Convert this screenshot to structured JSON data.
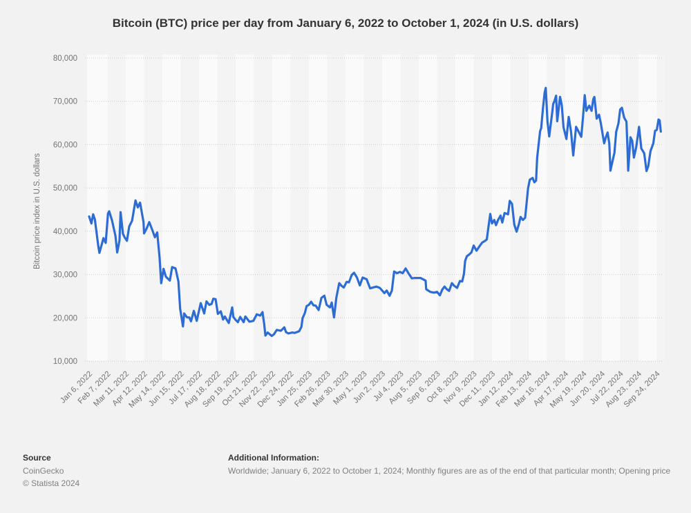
{
  "title": "Bitcoin (BTC) price per day from January 6, 2022 to October 1, 2024 (in U.S. dollars)",
  "colors": {
    "page_bg": "#f2f2f2",
    "band_light": "#fafafa",
    "band_dark": "#f4f4f4",
    "gridline": "#c9c9c9",
    "line": "#2d6cd2",
    "title_text": "#333333",
    "axis_text": "#737373",
    "footer_heading": "#333333",
    "footer_text": "#808080"
  },
  "footer": {
    "source_label": "Source",
    "source_name": "CoinGecko",
    "copyright": "© Statista 2024",
    "additional_info_label": "Additional Information:",
    "additional_info_text": "Worldwide; January 6, 2022 to October 1, 2024; Monthly figures are as of the end of that particular month; Opening price"
  },
  "chart_data": {
    "type": "line",
    "title": "Bitcoin (BTC) price per day from January 6, 2022 to October 1, 2024 (in U.S. dollars)",
    "xlabel": "",
    "ylabel": "Bitcoin price index in U.S. dollars",
    "ylim": [
      10000,
      80000
    ],
    "y_ticks": [
      80000,
      70000,
      60000,
      50000,
      40000,
      30000,
      20000,
      10000
    ],
    "y_tick_labels": [
      "80,000",
      "70,000",
      "60,000",
      "50,000",
      "40,000",
      "30,000",
      "20,000",
      "10,000"
    ],
    "x_tick_labels": [
      "Jan 6, 2022",
      "Feb 7, 2022",
      "Mar 11, 2022",
      "Apr 12, 2022",
      "May 14, 2022",
      "Jun 15, 2022",
      "Jul 17, 2022",
      "Aug 18, 2022",
      "Sep 19, 2022",
      "Oct 21, 2022",
      "Nov 22, 2022",
      "Dec 24, 2022",
      "Jan 25, 2023",
      "Feb 26, 2023",
      "Mar 30, 2023",
      "May 1, 2023",
      "Jun 2, 2023",
      "Jul 4, 2023",
      "Aug 5, 2023",
      "Sep 6, 2023",
      "Oct 8, 2023",
      "Nov 9, 2023",
      "Dec 11, 2023",
      "Jan 12, 2024",
      "Feb 13, 2024",
      "Mar 16, 2024",
      "Apr 17, 2024",
      "May 19, 2024",
      "Jun 20, 2024",
      "Jul 22, 2024",
      "Aug 23, 2024",
      "Sep 24, 2024"
    ],
    "x_tick_interval_days": 32,
    "x_unit": "days since Jan 6, 2022",
    "grid": "horizontal-dotted",
    "legend": "none",
    "series": [
      {
        "name": "Bitcoin opening price (U.S. dollars)",
        "points": [
          [
            0,
            43400
          ],
          [
            4,
            41800
          ],
          [
            7,
            43900
          ],
          [
            10,
            42700
          ],
          [
            16,
            36500
          ],
          [
            18,
            35000
          ],
          [
            25,
            38400
          ],
          [
            29,
            37300
          ],
          [
            33,
            44100
          ],
          [
            35,
            44600
          ],
          [
            40,
            42500
          ],
          [
            46,
            38900
          ],
          [
            49,
            35100
          ],
          [
            53,
            37800
          ],
          [
            55,
            44400
          ],
          [
            59,
            39400
          ],
          [
            62,
            38600
          ],
          [
            66,
            37800
          ],
          [
            70,
            41100
          ],
          [
            75,
            42400
          ],
          [
            81,
            47100
          ],
          [
            85,
            45500
          ],
          [
            89,
            46600
          ],
          [
            95,
            42100
          ],
          [
            96,
            39500
          ],
          [
            100,
            40500
          ],
          [
            105,
            42100
          ],
          [
            110,
            40400
          ],
          [
            115,
            38600
          ],
          [
            119,
            39700
          ],
          [
            123,
            34000
          ],
          [
            126,
            28000
          ],
          [
            130,
            31300
          ],
          [
            134,
            29500
          ],
          [
            141,
            28600
          ],
          [
            145,
            31700
          ],
          [
            151,
            31400
          ],
          [
            156,
            28400
          ],
          [
            159,
            22100
          ],
          [
            164,
            18000
          ],
          [
            166,
            21000
          ],
          [
            171,
            20100
          ],
          [
            175,
            20100
          ],
          [
            178,
            19200
          ],
          [
            183,
            21600
          ],
          [
            188,
            19300
          ],
          [
            195,
            23400
          ],
          [
            201,
            21000
          ],
          [
            205,
            23800
          ],
          [
            210,
            23000
          ],
          [
            214,
            23200
          ],
          [
            217,
            24400
          ],
          [
            221,
            24300
          ],
          [
            225,
            20900
          ],
          [
            230,
            21500
          ],
          [
            234,
            19600
          ],
          [
            237,
            20300
          ],
          [
            244,
            18800
          ],
          [
            250,
            22400
          ],
          [
            252,
            20200
          ],
          [
            256,
            19500
          ],
          [
            260,
            19000
          ],
          [
            264,
            20200
          ],
          [
            270,
            19000
          ],
          [
            273,
            20300
          ],
          [
            280,
            19100
          ],
          [
            287,
            19300
          ],
          [
            293,
            20800
          ],
          [
            299,
            20500
          ],
          [
            303,
            21300
          ],
          [
            306,
            18500
          ],
          [
            308,
            15900
          ],
          [
            312,
            16600
          ],
          [
            319,
            15800
          ],
          [
            323,
            16200
          ],
          [
            328,
            17200
          ],
          [
            335,
            17000
          ],
          [
            341,
            17800
          ],
          [
            344,
            16700
          ],
          [
            348,
            16400
          ],
          [
            355,
            16600
          ],
          [
            359,
            16500
          ],
          [
            363,
            16700
          ],
          [
            367,
            16900
          ],
          [
            371,
            17900
          ],
          [
            373,
            19900
          ],
          [
            377,
            21100
          ],
          [
            380,
            22700
          ],
          [
            384,
            23000
          ],
          [
            388,
            23700
          ],
          [
            392,
            22900
          ],
          [
            396,
            22800
          ],
          [
            401,
            21800
          ],
          [
            406,
            24600
          ],
          [
            411,
            25100
          ],
          [
            415,
            23000
          ],
          [
            421,
            22400
          ],
          [
            424,
            23500
          ],
          [
            428,
            20100
          ],
          [
            432,
            24700
          ],
          [
            437,
            28000
          ],
          [
            441,
            27400
          ],
          [
            445,
            27000
          ],
          [
            450,
            28300
          ],
          [
            454,
            28200
          ],
          [
            459,
            29900
          ],
          [
            463,
            30400
          ],
          [
            468,
            29300
          ],
          [
            473,
            27500
          ],
          [
            478,
            29300
          ],
          [
            485,
            28900
          ],
          [
            491,
            26800
          ],
          [
            496,
            27000
          ],
          [
            502,
            27200
          ],
          [
            508,
            26900
          ],
          [
            516,
            25700
          ],
          [
            520,
            26300
          ],
          [
            525,
            25100
          ],
          [
            529,
            26300
          ],
          [
            533,
            30700
          ],
          [
            538,
            30300
          ],
          [
            543,
            30600
          ],
          [
            548,
            30300
          ],
          [
            553,
            31400
          ],
          [
            558,
            30300
          ],
          [
            564,
            29100
          ],
          [
            569,
            29200
          ],
          [
            574,
            29200
          ],
          [
            579,
            29200
          ],
          [
            588,
            28600
          ],
          [
            589,
            26600
          ],
          [
            596,
            26000
          ],
          [
            603,
            25800
          ],
          [
            608,
            26000
          ],
          [
            613,
            25200
          ],
          [
            617,
            26500
          ],
          [
            621,
            27200
          ],
          [
            625,
            26600
          ],
          [
            629,
            26200
          ],
          [
            634,
            28000
          ],
          [
            638,
            27400
          ],
          [
            643,
            26900
          ],
          [
            648,
            28500
          ],
          [
            652,
            28400
          ],
          [
            655,
            30100
          ],
          [
            657,
            33100
          ],
          [
            660,
            34200
          ],
          [
            664,
            34600
          ],
          [
            668,
            35100
          ],
          [
            672,
            36700
          ],
          [
            677,
            35500
          ],
          [
            682,
            36500
          ],
          [
            687,
            37400
          ],
          [
            692,
            37800
          ],
          [
            695,
            38100
          ],
          [
            697,
            40200
          ],
          [
            701,
            44000
          ],
          [
            704,
            41800
          ],
          [
            708,
            42600
          ],
          [
            711,
            41400
          ],
          [
            715,
            42700
          ],
          [
            719,
            43600
          ],
          [
            722,
            42000
          ],
          [
            726,
            44200
          ],
          [
            732,
            43900
          ],
          [
            735,
            47000
          ],
          [
            739,
            46300
          ],
          [
            743,
            41500
          ],
          [
            747,
            39900
          ],
          [
            751,
            41600
          ],
          [
            754,
            43300
          ],
          [
            758,
            42600
          ],
          [
            762,
            43100
          ],
          [
            767,
            49900
          ],
          [
            770,
            51900
          ],
          [
            775,
            52300
          ],
          [
            778,
            51300
          ],
          [
            781,
            51700
          ],
          [
            783,
            57000
          ],
          [
            788,
            63100
          ],
          [
            790,
            63800
          ],
          [
            793,
            68300
          ],
          [
            796,
            72000
          ],
          [
            798,
            73100
          ],
          [
            801,
            65300
          ],
          [
            804,
            61900
          ],
          [
            809,
            67200
          ],
          [
            811,
            69400
          ],
          [
            813,
            70000
          ],
          [
            816,
            71300
          ],
          [
            818,
            65400
          ],
          [
            823,
            71000
          ],
          [
            826,
            69100
          ],
          [
            829,
            64000
          ],
          [
            834,
            61300
          ],
          [
            838,
            66400
          ],
          [
            842,
            63100
          ],
          [
            846,
            57500
          ],
          [
            851,
            64100
          ],
          [
            855,
            63100
          ],
          [
            860,
            61800
          ],
          [
            863,
            66300
          ],
          [
            866,
            71400
          ],
          [
            869,
            67800
          ],
          [
            874,
            69000
          ],
          [
            878,
            67800
          ],
          [
            881,
            70500
          ],
          [
            883,
            71000
          ],
          [
            887,
            66000
          ],
          [
            891,
            66900
          ],
          [
            894,
            65100
          ],
          [
            900,
            60300
          ],
          [
            903,
            61700
          ],
          [
            906,
            62800
          ],
          [
            909,
            60200
          ],
          [
            911,
            54000
          ],
          [
            914,
            55800
          ],
          [
            918,
            58100
          ],
          [
            921,
            62900
          ],
          [
            925,
            64900
          ],
          [
            928,
            68100
          ],
          [
            931,
            68500
          ],
          [
            935,
            66200
          ],
          [
            939,
            65300
          ],
          [
            941,
            58200
          ],
          [
            942,
            54000
          ],
          [
            946,
            61700
          ],
          [
            949,
            60900
          ],
          [
            952,
            57000
          ],
          [
            956,
            59400
          ],
          [
            961,
            64100
          ],
          [
            965,
            59100
          ],
          [
            970,
            58000
          ],
          [
            974,
            53900
          ],
          [
            977,
            55000
          ],
          [
            981,
            58500
          ],
          [
            986,
            60300
          ],
          [
            989,
            63200
          ],
          [
            992,
            63400
          ],
          [
            995,
            65800
          ],
          [
            997,
            65600
          ],
          [
            999,
            63000
          ]
        ]
      }
    ]
  }
}
